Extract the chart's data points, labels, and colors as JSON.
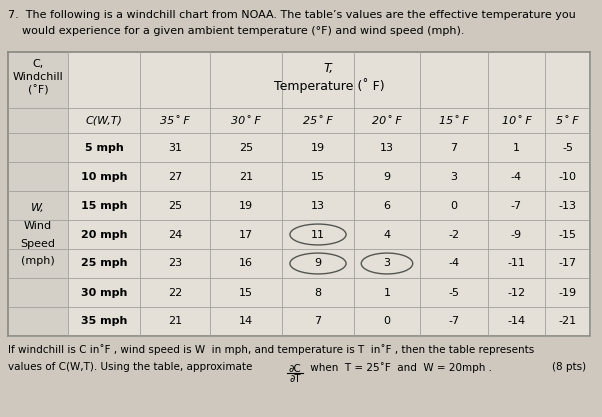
{
  "question_line1": "7.  The following is a windchill chart from NOAA. The table’s values are the effective temperature you",
  "question_line2": "    would experience for a given ambient temperature (°F) and wind speed (mph).",
  "top_left_lines": [
    "C,",
    "Windchill",
    "(˚F)"
  ],
  "col_header_T": "T,",
  "col_header_Temp": "Temperature (˚ F)",
  "col_headers": [
    "C(W,T)",
    "35˚ F",
    "30˚ F",
    "25˚ F",
    "20˚ F",
    "15˚ F",
    "10˚ F",
    "5˚ F"
  ],
  "row_label_lines": [
    "W,",
    "Wind",
    "Speed",
    "(mph)"
  ],
  "row_labels": [
    "5 mph",
    "10 mph",
    "15 mph",
    "20 mph",
    "25 mph",
    "30 mph",
    "35 mph"
  ],
  "table_data": [
    [
      31,
      25,
      19,
      13,
      7,
      1,
      -5
    ],
    [
      27,
      21,
      15,
      9,
      3,
      -4,
      -10
    ],
    [
      25,
      19,
      13,
      6,
      0,
      -7,
      -13
    ],
    [
      24,
      17,
      11,
      4,
      -2,
      -9,
      -15
    ],
    [
      23,
      16,
      9,
      3,
      -4,
      -11,
      -17
    ],
    [
      22,
      15,
      8,
      1,
      -5,
      -12,
      -19
    ],
    [
      21,
      14,
      7,
      0,
      -7,
      -14,
      -21
    ]
  ],
  "circled_cells": [
    [
      3,
      2
    ],
    [
      4,
      2
    ],
    [
      4,
      3
    ]
  ],
  "footer_line1": "If windchill is C in˚F , wind speed is W  in mph, and temperature is T  in˚F , then the table represents",
  "footer_line2_pre": "values of C(W,T). Using the table, approximate ",
  "footer_frac_num": "∂C",
  "footer_frac_den": "∂T",
  "footer_line2_post": " when  T = 25˚F  and  W = 20mph .",
  "footer_pts": "(8 pts)",
  "bg": "#cec8be",
  "table_bg": "#e4e0d8",
  "header_left_bg": "#d4d0c8",
  "line_color": "#aaa89e"
}
